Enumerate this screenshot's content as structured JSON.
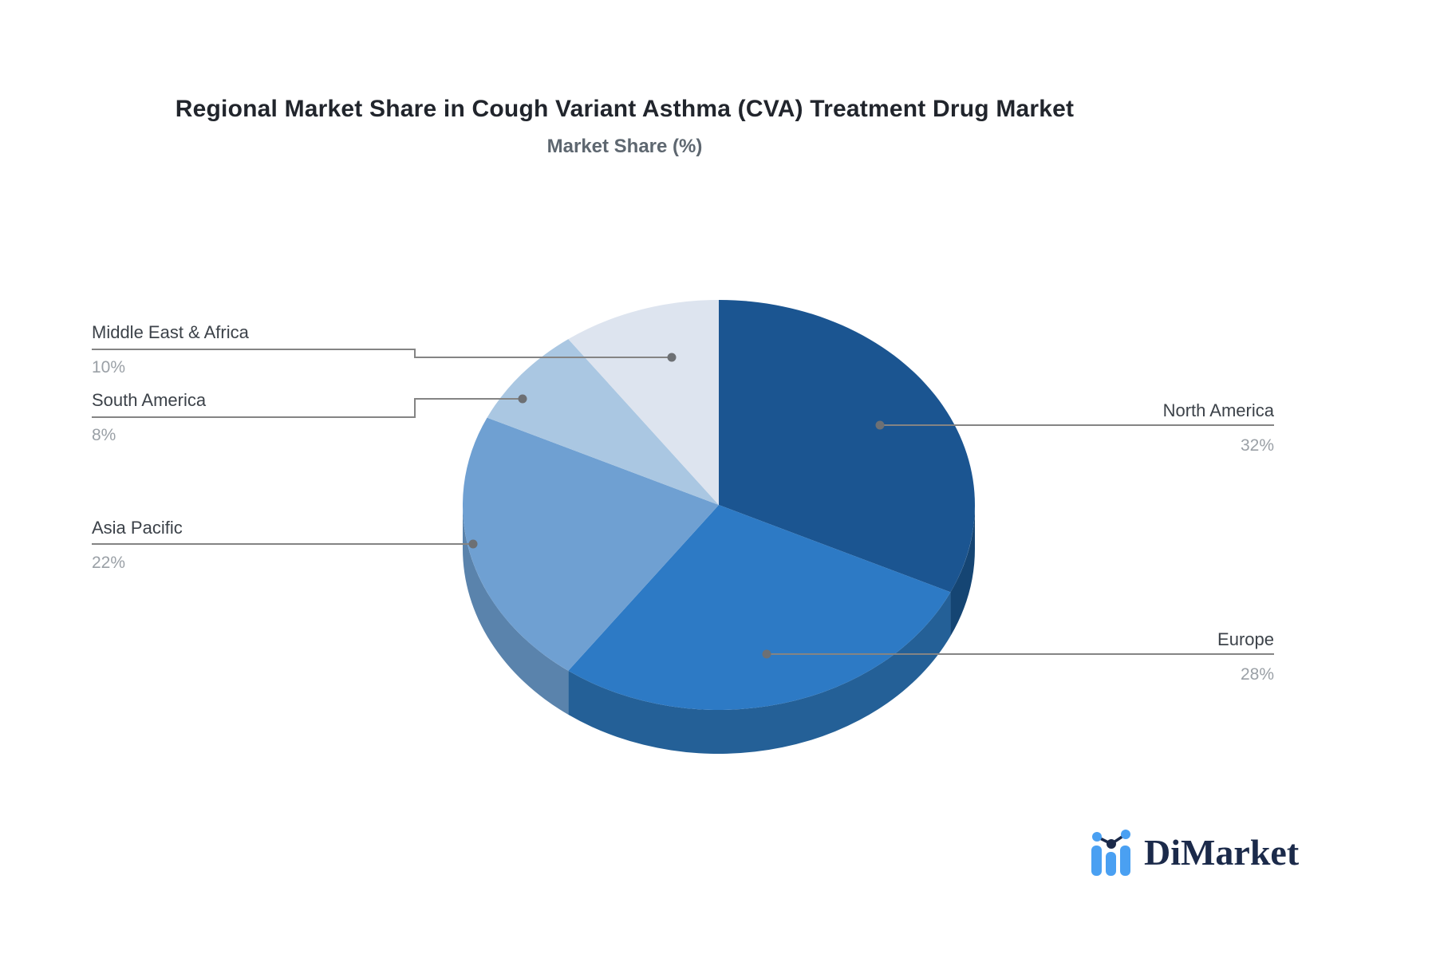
{
  "header": {
    "title": "Regional Market Share in Cough Variant Asthma (CVA) Treatment Drug Market",
    "subtitle": "Market Share (%)"
  },
  "chart_data": {
    "type": "pie",
    "effect": "3d",
    "title": "Regional Market Share in Cough Variant Asthma (CVA) Treatment Drug Market",
    "subtitle": "Market Share (%)",
    "unit": "%",
    "start_angle_deg": 0,
    "direction": "clockwise",
    "legend_position": "none",
    "label_style": "callout-lines-with-dots",
    "series": [
      {
        "name": "North America",
        "value": 32,
        "pct_label": "32%",
        "color": "#1b5591",
        "side_color": "#154573"
      },
      {
        "name": "Europe",
        "value": 28,
        "pct_label": "28%",
        "color": "#2d7ac5",
        "side_color": "#246097"
      },
      {
        "name": "Asia Pacific",
        "value": 22,
        "pct_label": "22%",
        "color": "#6fa0d2",
        "side_color": "#5a83ac"
      },
      {
        "name": "South America",
        "value": 8,
        "pct_label": "8%",
        "color": "#aac7e2",
        "side_color": "#8ba6bf"
      },
      {
        "name": "Middle East & Africa",
        "value": 10,
        "pct_label": "10%",
        "color": "#dde4ef",
        "side_color": "#b9c1cd"
      }
    ]
  },
  "colors": {
    "background": "#ffffff",
    "title_text": "#21252c",
    "subtitle_text": "#5e6770",
    "label_text": "#3c4249",
    "pct_text": "#9aa0a6",
    "connector_line": "#848484",
    "connector_dot": "#6d7074"
  },
  "branding": {
    "logo_text": "DiMarket",
    "logo_icon": "bar-line-chart-icon",
    "logo_text_color": "#1b2a4a",
    "logo_accent_color": "#4aa0f2",
    "logo_dark_color": "#1b2a4a"
  }
}
